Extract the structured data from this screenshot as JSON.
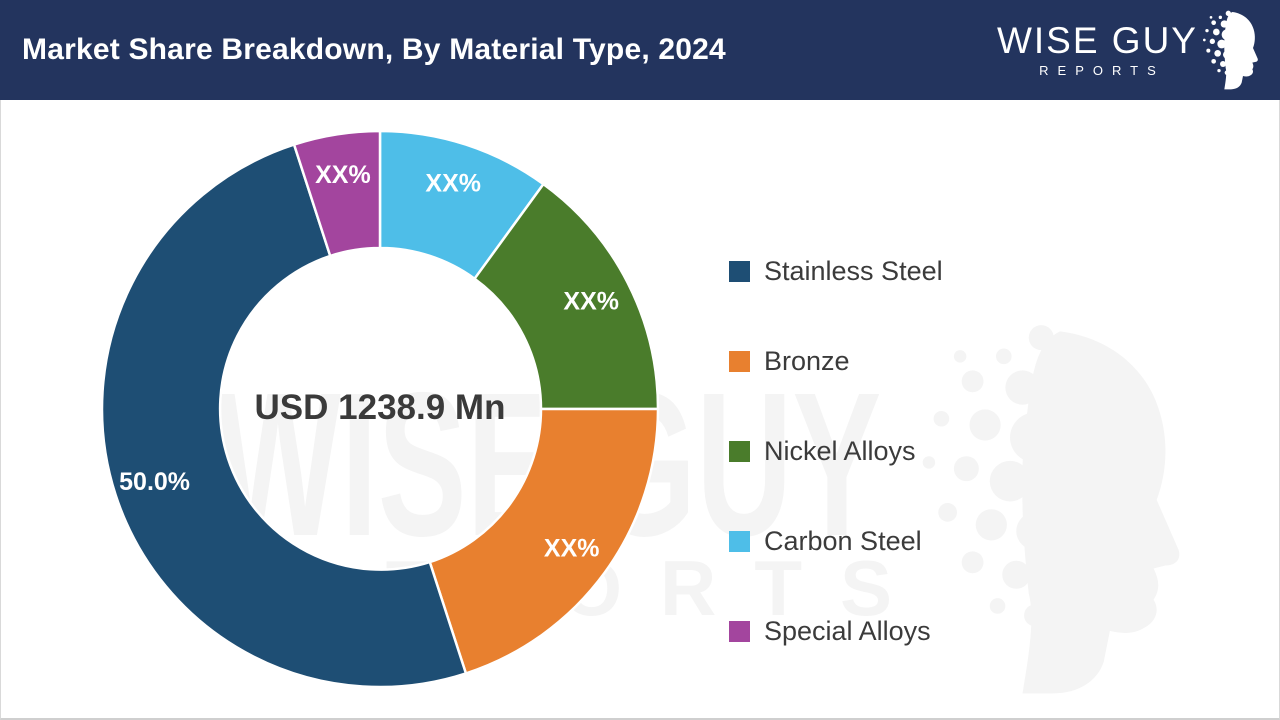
{
  "header": {
    "title": "Market Share Breakdown, By Material Type, 2024",
    "bg_color": "#23345E",
    "logo": {
      "line1": "WISE GUY",
      "line2": "REPORTS"
    }
  },
  "watermark": {
    "line1": "WISE GUY",
    "line2": "REPORTS"
  },
  "chart_data": {
    "type": "pie",
    "subtype": "donut",
    "title": "Market Share Breakdown, By Material Type, 2024",
    "center_label": "USD 1238.9 Mn",
    "start_angle_deg": 0,
    "direction": "clockwise",
    "inner_radius_ratio": 0.58,
    "legend_position": "right",
    "segments": [
      {
        "name": "Carbon Steel",
        "value_pct": 10,
        "label": "XX%",
        "color": "#4EBEE8"
      },
      {
        "name": "Nickel Alloys",
        "value_pct": 15,
        "label": "XX%",
        "color": "#4A7C2B"
      },
      {
        "name": "Bronze",
        "value_pct": 20,
        "label": "XX%",
        "color": "#E8802F"
      },
      {
        "name": "Stainless Steel",
        "value_pct": 50,
        "label": "50.0%",
        "color": "#1E4E74"
      },
      {
        "name": "Special Alloys",
        "value_pct": 5,
        "label": "XX%",
        "color": "#A3459E"
      }
    ],
    "legend_items": [
      "Stainless Steel",
      "Bronze",
      "Nickel Alloys",
      "Carbon Steel",
      "Special Alloys"
    ]
  }
}
